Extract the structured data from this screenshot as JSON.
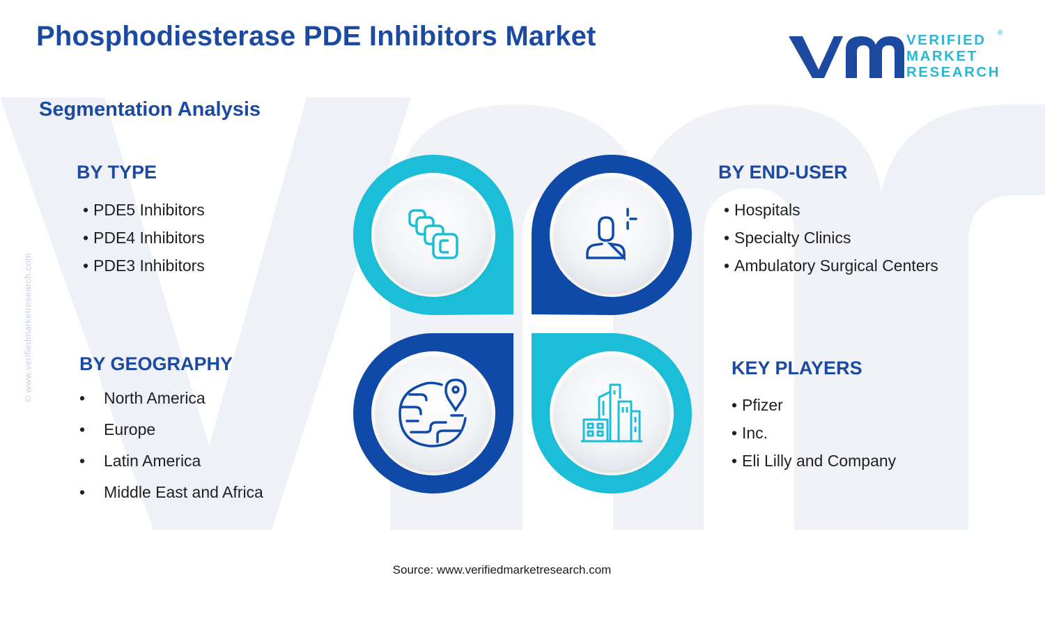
{
  "title": "Phosphodiesterase PDE Inhibitors Market",
  "subtitle": "Segmentation Analysis",
  "logo": {
    "line1": "VERIFIED",
    "line2": "MARKET",
    "line3": "RESEARCH",
    "registered": "®"
  },
  "side_watermark": "© www.verifiedmarketresearch.com",
  "segments": {
    "type": {
      "heading": "BY TYPE",
      "items": [
        "PDE5 Inhibitors",
        "PDE4 Inhibitors",
        "PDE3 Inhibitors"
      ]
    },
    "end_user": {
      "heading": "BY END-USER",
      "items": [
        "Hospitals",
        "Specialty Clinics",
        "Ambulatory Surgical Centers"
      ]
    },
    "geography": {
      "heading": "BY GEOGRAPHY",
      "items": [
        "North America",
        "Europe",
        "Latin America",
        "Middle East and Africa"
      ]
    },
    "key_players": {
      "heading": "KEY PLAYERS",
      "items": [
        "Pfizer",
        "Inc.",
        "Eli Lilly and Company"
      ]
    }
  },
  "bullet": "•",
  "icons": [
    "pills-icon",
    "user-add-icon",
    "globe-location-icon",
    "buildings-icon"
  ],
  "colors": {
    "primary_blue": "#1c4aa0",
    "dark_blue": "#0f4aa8",
    "cyan": "#1cbdd6",
    "watermark": "#eef1f7"
  },
  "source": "Source: www.verifiedmarketresearch.com"
}
